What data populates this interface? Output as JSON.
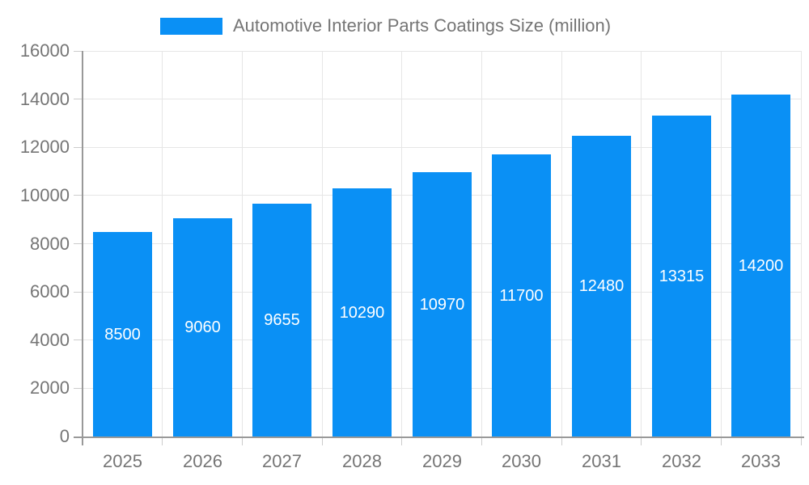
{
  "chart_data": {
    "type": "bar",
    "title": "Automotive Interior Parts Coatings Size (million)",
    "categories": [
      "2025",
      "2026",
      "2027",
      "2028",
      "2029",
      "2030",
      "2031",
      "2032",
      "2033"
    ],
    "values": [
      8500,
      9060,
      9655,
      10290,
      10970,
      11700,
      12480,
      13315,
      14200
    ],
    "xlabel": "",
    "ylabel": "",
    "ylim": [
      0,
      16000
    ],
    "ytick_step": 2000,
    "yticks": [
      0,
      2000,
      4000,
      6000,
      8000,
      10000,
      12000,
      14000,
      16000
    ],
    "grid": true,
    "legend_position": "top",
    "bar_labels_inside": "centered",
    "colors": {
      "bar": "#0A90F5",
      "bar_label": "#FFFFFF",
      "axis_line": "#999999",
      "gridline": "#E6E6E6",
      "tick": "#CCCCCC",
      "axis_text": "#757575",
      "title_text": "#757575",
      "background": "#FFFFFF"
    }
  }
}
